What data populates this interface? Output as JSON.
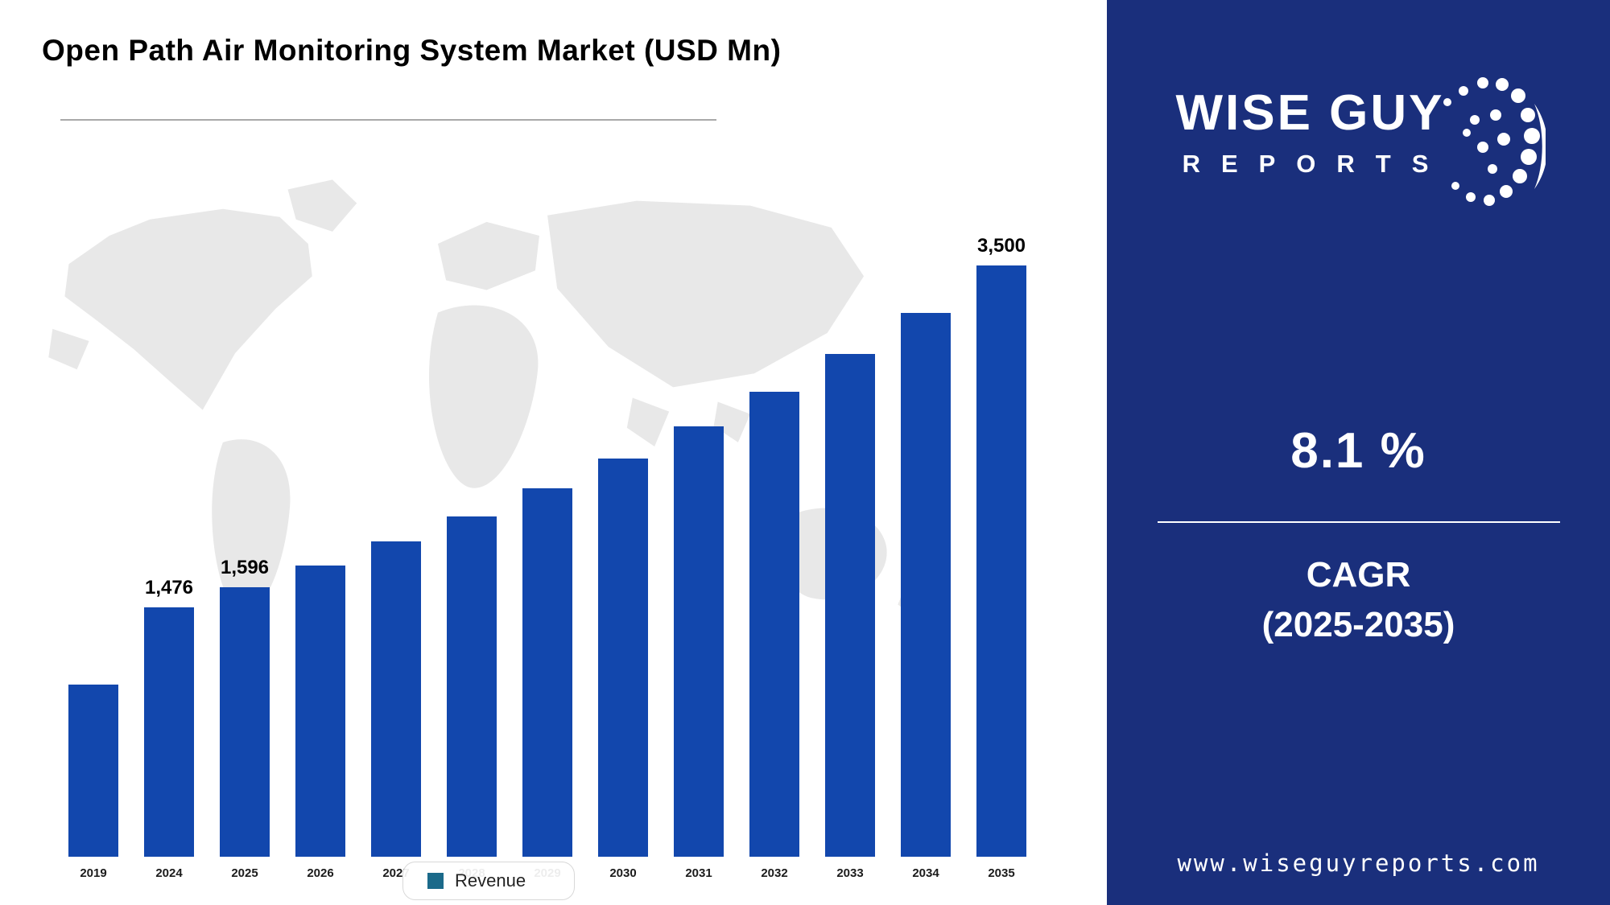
{
  "header": {
    "title": "Open Path Air Monitoring System Market (USD Mn)"
  },
  "chart_data": {
    "type": "bar",
    "title": "Open Path Air Monitoring System Market (USD Mn)",
    "categories": [
      "2019",
      "2024",
      "2025",
      "2026",
      "2027",
      "2028",
      "2029",
      "2030",
      "2031",
      "2032",
      "2033",
      "2034",
      "2035"
    ],
    "values": [
      1020,
      1476,
      1596,
      1725,
      1865,
      2016,
      2179,
      2356,
      2547,
      2753,
      2976,
      3217,
      3500
    ],
    "value_labels": [
      "",
      "1,476",
      "1,596",
      "",
      "",
      "",
      "",
      "",
      "",
      "",
      "",
      "",
      "3,500"
    ],
    "ylim": [
      0,
      3500
    ],
    "grid": false,
    "legend_position": "bottom",
    "bar_color": "#1247ad"
  },
  "legend": {
    "label": "Revenue",
    "swatch_color": "#1b6a8a"
  },
  "side_panel": {
    "brand": {
      "line1": "WISE GUY",
      "line2": "REPORTS"
    },
    "cagr_value": "8.1 %",
    "cagr_label": "CAGR",
    "cagr_period": "(2025-2035)",
    "website": "www.wiseguyreports.com"
  },
  "colors": {
    "panel_bg": "#1a2f7c",
    "bar": "#1247ad",
    "map": "#e8e8e8"
  }
}
